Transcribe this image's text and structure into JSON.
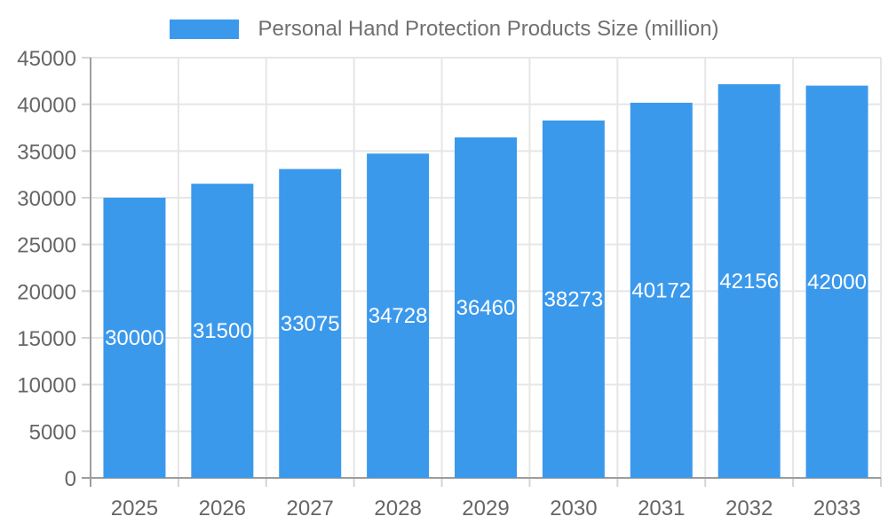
{
  "legend": {
    "label": "Personal Hand Protection Products Size (million)"
  },
  "colors": {
    "bar": "#3B99EC",
    "grid": "#E6E6E6",
    "axis": "#9E9E9E",
    "tick": "#D4D4D4",
    "axis_text": "#666666",
    "legend_text": "#707070",
    "value_text": "#FFFFFF",
    "background": "#FFFFFF"
  },
  "chart_data": {
    "type": "bar",
    "title": "Personal Hand Protection Products Size (million)",
    "categories": [
      "2025",
      "2026",
      "2027",
      "2028",
      "2029",
      "2030",
      "2031",
      "2032",
      "2033"
    ],
    "values": [
      30000,
      31500,
      33075,
      34728,
      36460,
      38273,
      40172,
      42156,
      42000
    ],
    "xlabel": "",
    "ylabel": "",
    "ylim": [
      0,
      45000
    ],
    "yticks": [
      0,
      5000,
      10000,
      15000,
      20000,
      25000,
      30000,
      35000,
      40000,
      45000
    ],
    "grid": true,
    "legend_position": "top",
    "value_labels": "inside-center"
  }
}
